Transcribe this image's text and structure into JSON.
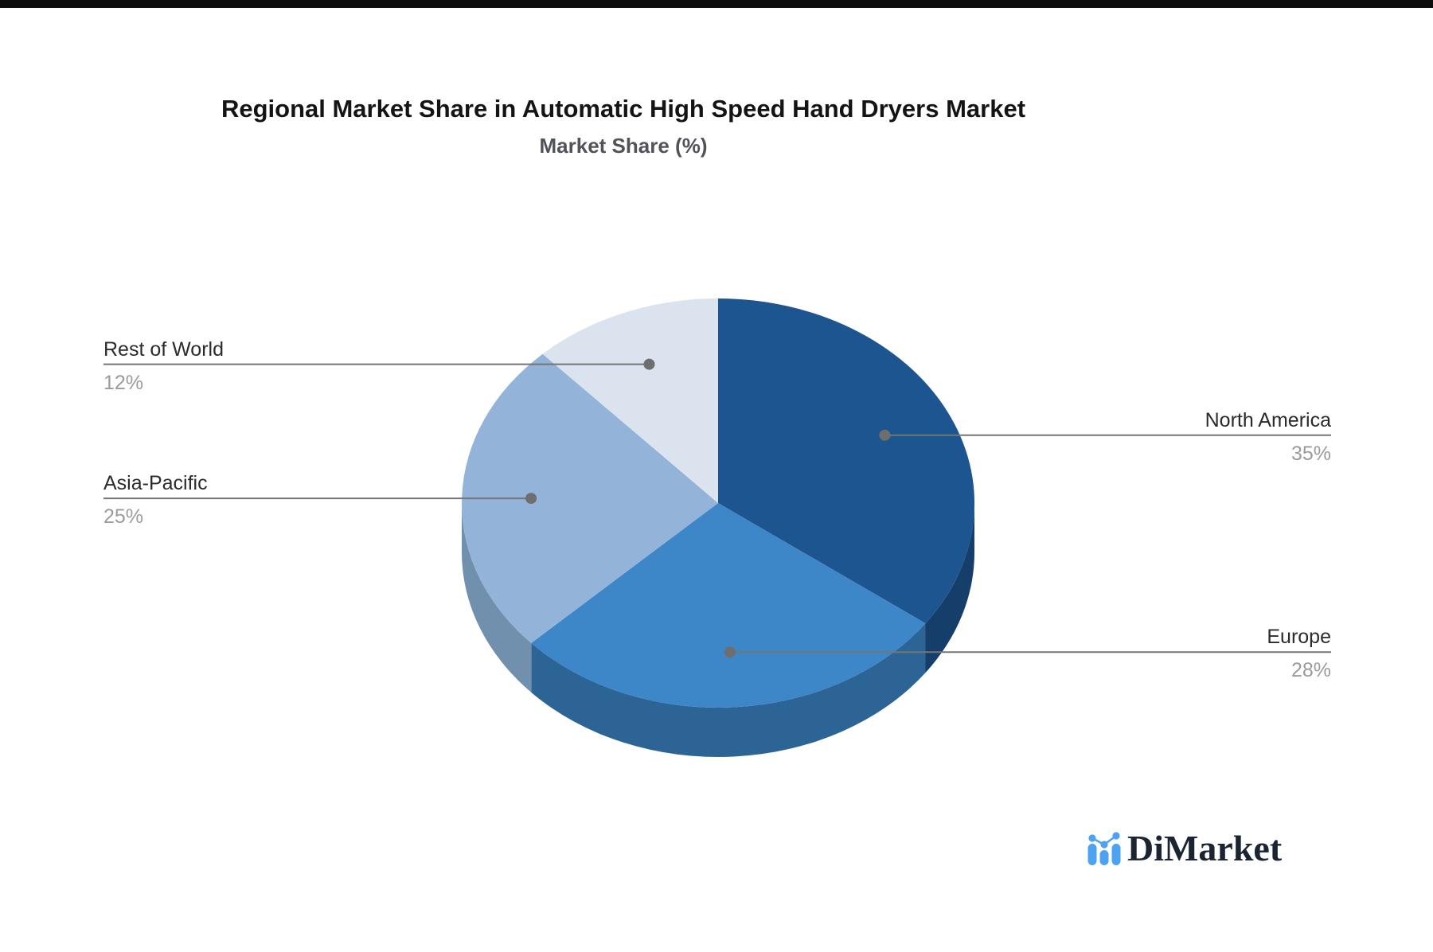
{
  "chart_data": {
    "type": "pie",
    "style": "3d",
    "title": "Regional Market Share in Automatic High Speed Hand Dryers Market",
    "subtitle": "Market Share (%)",
    "unit": "%",
    "direction": "clockwise",
    "start_angle_deg": 0,
    "legend_position": "none",
    "categories": [
      "North America",
      "Europe",
      "Asia-Pacific",
      "Rest of World"
    ],
    "values": [
      35,
      28,
      25,
      12
    ],
    "slices": [
      {
        "label": "North America",
        "value": 35,
        "pct_label": "35%",
        "color": "#1d5590",
        "side_color": "#163e6a",
        "label_side": "right"
      },
      {
        "label": "Europe",
        "value": 28,
        "pct_label": "28%",
        "color": "#3d86c8",
        "side_color": "#2d6496",
        "label_side": "right"
      },
      {
        "label": "Asia-Pacific",
        "value": 25,
        "pct_label": "25%",
        "color": "#93b4d8",
        "side_color": "#7190ae",
        "label_side": "left"
      },
      {
        "label": "Rest of World",
        "value": 12,
        "pct_label": "12%",
        "color": "#dbe3ef",
        "side_color": "#b0bccd",
        "label_side": "left"
      }
    ],
    "connector_color": "#757575",
    "dot_color": "#6e6e6e",
    "label_text_color": "#2b2b2b",
    "pct_text_color": "#9b9b9b"
  },
  "branding": {
    "logo_text": "DiMarket",
    "logo_text_color": "#1b2431",
    "logo_accent_color": "#4da3f2"
  }
}
